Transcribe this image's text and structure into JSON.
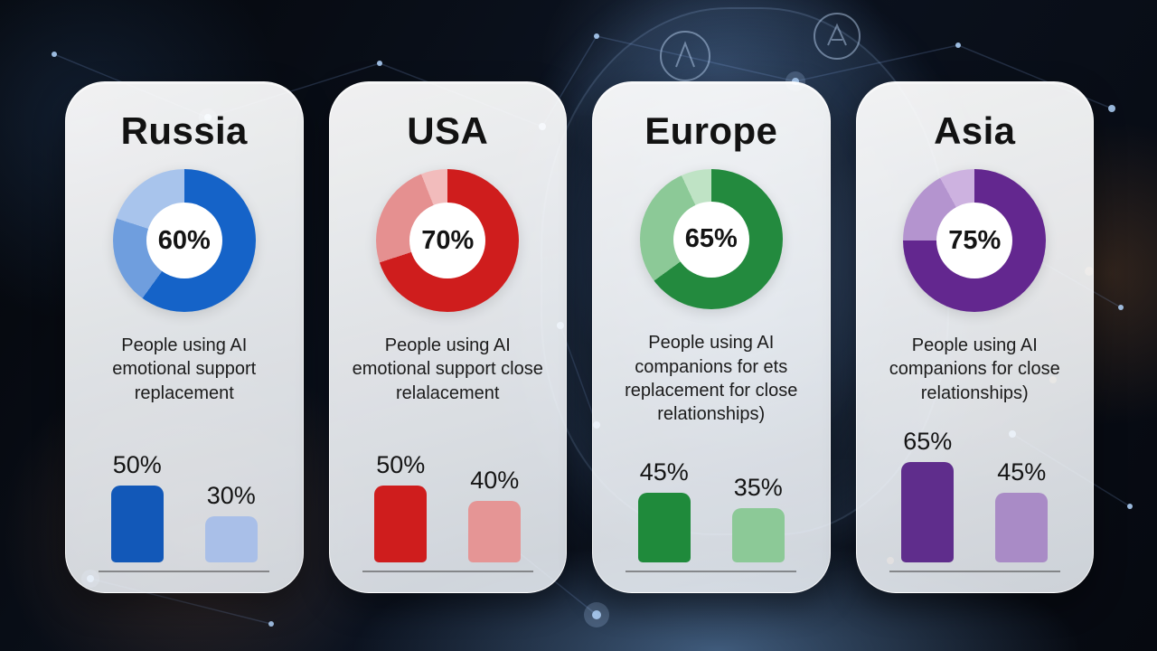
{
  "background": {
    "theme": "dark AI neural-network scene with translucent robot head and hand",
    "glow_color": "#7fb6ff"
  },
  "cards": [
    {
      "title": "Russia",
      "donut": {
        "center_label": "60%",
        "value": 60,
        "segments": [
          {
            "color": "#1563c8",
            "from": 0,
            "to": 60
          },
          {
            "color": "#6f9ede",
            "from": 60,
            "to": 80
          },
          {
            "color": "#a8c4ec",
            "from": 80,
            "to": 100
          }
        ]
      },
      "caption": "People using AI emotional support replacement",
      "bars": [
        {
          "label": "50%",
          "value": 50,
          "color": "#1258b8"
        },
        {
          "label": "30%",
          "value": 30,
          "color": "#a9bfe8"
        }
      ]
    },
    {
      "title": "USA",
      "donut": {
        "center_label": "70%",
        "value": 70,
        "segments": [
          {
            "color": "#cf1d1d",
            "from": 0,
            "to": 70
          },
          {
            "color": "#e59090",
            "from": 70,
            "to": 94
          },
          {
            "color": "#f2bcbc",
            "from": 94,
            "to": 100
          }
        ]
      },
      "caption": "People using AI emotional support close relalacement",
      "bars": [
        {
          "label": "50%",
          "value": 50,
          "color": "#cf1d1d"
        },
        {
          "label": "40%",
          "value": 40,
          "color": "#e59595"
        }
      ]
    },
    {
      "title": "Europe",
      "donut": {
        "center_label": "65%",
        "value": 65,
        "segments": [
          {
            "color": "#238a3e",
            "from": 0,
            "to": 65
          },
          {
            "color": "#8cc997",
            "from": 65,
            "to": 93
          },
          {
            "color": "#bfe3c5",
            "from": 93,
            "to": 100
          }
        ]
      },
      "caption": "People using AI companions for ets replacement for close relationships)",
      "bars": [
        {
          "label": "45%",
          "value": 45,
          "color": "#1f8a3b"
        },
        {
          "label": "35%",
          "value": 35,
          "color": "#8cc997"
        }
      ]
    },
    {
      "title": "Asia",
      "donut": {
        "center_label": "75%",
        "value": 75,
        "segments": [
          {
            "color": "#63278f",
            "from": 0,
            "to": 75
          },
          {
            "color": "#b494cf",
            "from": 75,
            "to": 92
          },
          {
            "color": "#cdb2e0",
            "from": 92,
            "to": 100
          }
        ]
      },
      "caption": "People using AI companions for close relationships)",
      "bars": [
        {
          "label": "65%",
          "value": 65,
          "color": "#5f2d8c"
        },
        {
          "label": "45%",
          "value": 45,
          "color": "#a98bc6"
        }
      ]
    }
  ],
  "chart_data": [
    {
      "type": "pie",
      "title": "Russia",
      "labels": [
        "value",
        "remainder"
      ],
      "values": [
        60,
        40
      ],
      "center_label": "60%",
      "caption": "People using AI emotional support replacement"
    },
    {
      "type": "bar",
      "title": "Russia",
      "categories": [
        "bar1",
        "bar2"
      ],
      "values": [
        50,
        30
      ],
      "data_labels": [
        "50%",
        "30%"
      ],
      "ylim": [
        0,
        100
      ]
    },
    {
      "type": "pie",
      "title": "USA",
      "labels": [
        "value",
        "remainder"
      ],
      "values": [
        70,
        30
      ],
      "center_label": "70%",
      "caption": "People using AI emotional support close relalacement"
    },
    {
      "type": "bar",
      "title": "USA",
      "categories": [
        "bar1",
        "bar2"
      ],
      "values": [
        50,
        40
      ],
      "data_labels": [
        "50%",
        "40%"
      ],
      "ylim": [
        0,
        100
      ]
    },
    {
      "type": "pie",
      "title": "Europe",
      "labels": [
        "value",
        "remainder"
      ],
      "values": [
        65,
        35
      ],
      "center_label": "65%",
      "caption": "People using AI companions for ets replacement for close relationships)"
    },
    {
      "type": "bar",
      "title": "Europe",
      "categories": [
        "bar1",
        "bar2"
      ],
      "values": [
        45,
        35
      ],
      "data_labels": [
        "45%",
        "35%"
      ],
      "ylim": [
        0,
        100
      ]
    },
    {
      "type": "pie",
      "title": "Asia",
      "labels": [
        "value",
        "remainder"
      ],
      "values": [
        75,
        25
      ],
      "center_label": "75%",
      "caption": "People using AI companions for close relationships)"
    },
    {
      "type": "bar",
      "title": "Asia",
      "categories": [
        "bar1",
        "bar2"
      ],
      "values": [
        65,
        45
      ],
      "data_labels": [
        "65%",
        "45%"
      ],
      "ylim": [
        0,
        100
      ]
    }
  ]
}
